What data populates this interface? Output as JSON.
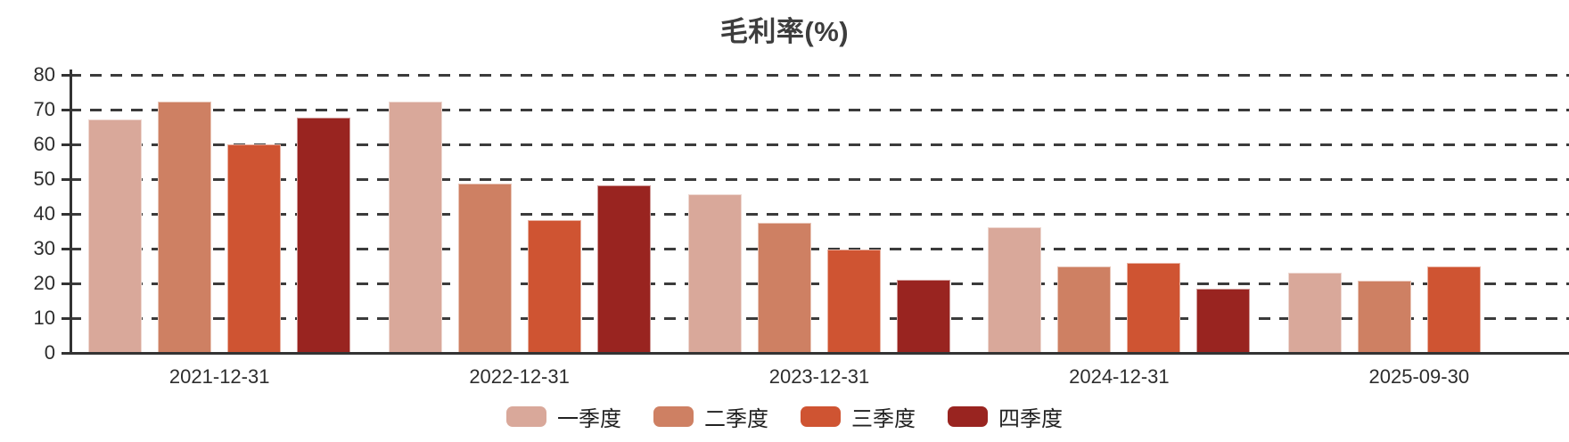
{
  "chart_data": {
    "type": "bar",
    "title": "毛利率(%)",
    "categories": [
      "2021-12-31",
      "2022-12-31",
      "2023-12-31",
      "2024-12-31",
      "2025-09-30"
    ],
    "series": [
      {
        "name": "一季度",
        "color": "#d9a89a",
        "values": [
          67.3,
          72.2,
          45.6,
          36.2,
          23.2
        ]
      },
      {
        "name": "二季度",
        "color": "#ce8063",
        "values": [
          72.4,
          48.6,
          37.4,
          24.8,
          20.8
        ]
      },
      {
        "name": "三季度",
        "color": "#cf5432",
        "values": [
          59.9,
          38.3,
          29.7,
          25.9,
          25.0
        ]
      },
      {
        "name": "四季度",
        "color": "#992420",
        "values": [
          67.8,
          48.3,
          21.0,
          18.4,
          null
        ]
      }
    ],
    "ylim": [
      0,
      80
    ],
    "yticks": [
      0,
      10,
      20,
      30,
      40,
      50,
      60,
      70,
      80
    ],
    "xlabel": "",
    "ylabel": "",
    "grid": "horizontal-dashed",
    "legend_position": "bottom"
  }
}
